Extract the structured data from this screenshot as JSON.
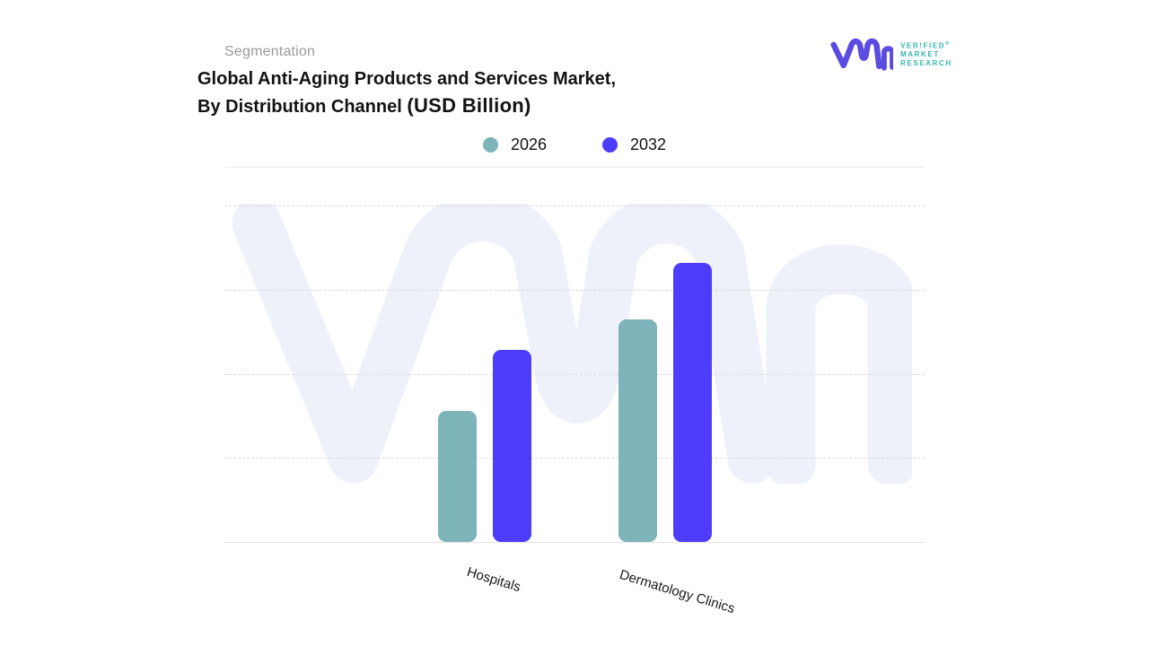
{
  "header": {
    "eyebrow": "Segmentation",
    "title_line1": "Global Anti-Aging Products and Services Market,",
    "title_line2": "By Distribution Channel ",
    "title_unit": "(USD Billion)"
  },
  "logo": {
    "brand_line1": "VER!FIED",
    "brand_line2": "MARKET",
    "brand_line3": "RESEARCH",
    "registered_mark": "®",
    "monogram_color": "#5a4be1",
    "text_color": "#35b5b0"
  },
  "legend": {
    "items": [
      {
        "label": "2026",
        "color": "#7cb4ba"
      },
      {
        "label": "2032",
        "color": "#4d3dfa"
      }
    ]
  },
  "chart_data": {
    "type": "bar",
    "title": "Global Anti-Aging Products and Services Market, By Distribution Channel (USD Billion)",
    "categories": [
      "Hospitals",
      "Dermatology Clinics"
    ],
    "series": [
      {
        "name": "2026",
        "color": "#7cb4ba",
        "values": [
          39,
          66
        ]
      },
      {
        "name": "2032",
        "color": "#4d3dfa",
        "values": [
          57,
          83
        ]
      }
    ],
    "value_note": "Y axis is unlabeled in the source image; values are estimated as percent of plot height read from the four equal dashed-gridline intervals",
    "ylim": [
      0,
      100
    ],
    "gridline_intervals": 4,
    "grid": "horizontal-dashed",
    "legend_position": "top-center",
    "x_label_rotation_deg": 17,
    "colors": {
      "grid": "#d9d9e0",
      "baseline": "#e2e2e6",
      "watermark": "#eef1f9"
    }
  }
}
